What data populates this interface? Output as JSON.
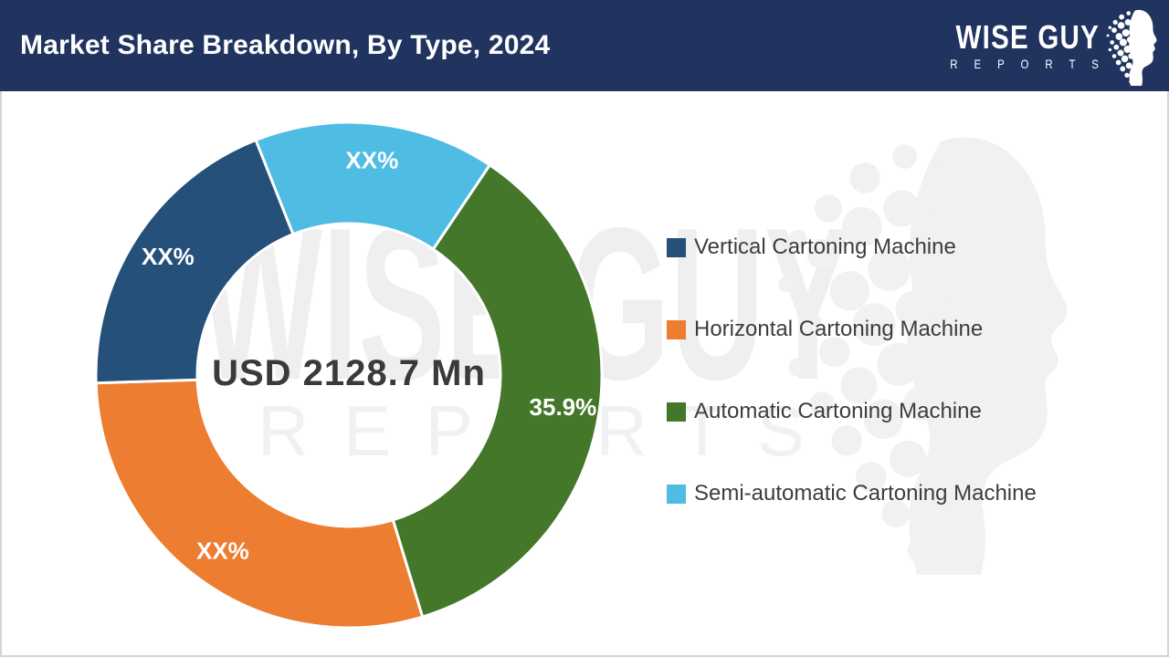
{
  "header": {
    "title": "Market Share Breakdown, By Type, 2024",
    "logo": {
      "brand_top": "WISE GUY",
      "brand_bottom": "R E P O R T S"
    }
  },
  "watermark": {
    "brand_top": "WISE GUY",
    "brand_bottom": "R E P O R T S"
  },
  "chart_data": {
    "type": "pie",
    "subtype": "donut",
    "title": "Market Share Breakdown, By Type, 2024",
    "center_label": "USD 2128.7 Mn",
    "start_angle_deg": -21.6,
    "legend_position": "right",
    "segments": [
      {
        "name": "Semi-automatic Cartoning Machine",
        "value_pct": 15.4,
        "label": "XX%",
        "color": "#4FBCE4"
      },
      {
        "name": "Automatic Cartoning Machine",
        "value_pct": 35.9,
        "label": "35.9%",
        "color": "#44772A"
      },
      {
        "name": "Horizontal Cartoning Machine",
        "value_pct": 29.2,
        "label": "XX%",
        "color": "#ED7D31"
      },
      {
        "name": "Vertical Cartoning Machine",
        "value_pct": 19.5,
        "label": "XX%",
        "color": "#24507A"
      }
    ],
    "legend": [
      {
        "label": "Vertical Cartoning Machine",
        "color": "#24507A"
      },
      {
        "label": "Horizontal Cartoning Machine",
        "color": "#ED7D31"
      },
      {
        "label": "Automatic Cartoning Machine",
        "color": "#44772A"
      },
      {
        "label": "Semi-automatic Cartoning Machine",
        "color": "#4FBCE4"
      }
    ]
  }
}
